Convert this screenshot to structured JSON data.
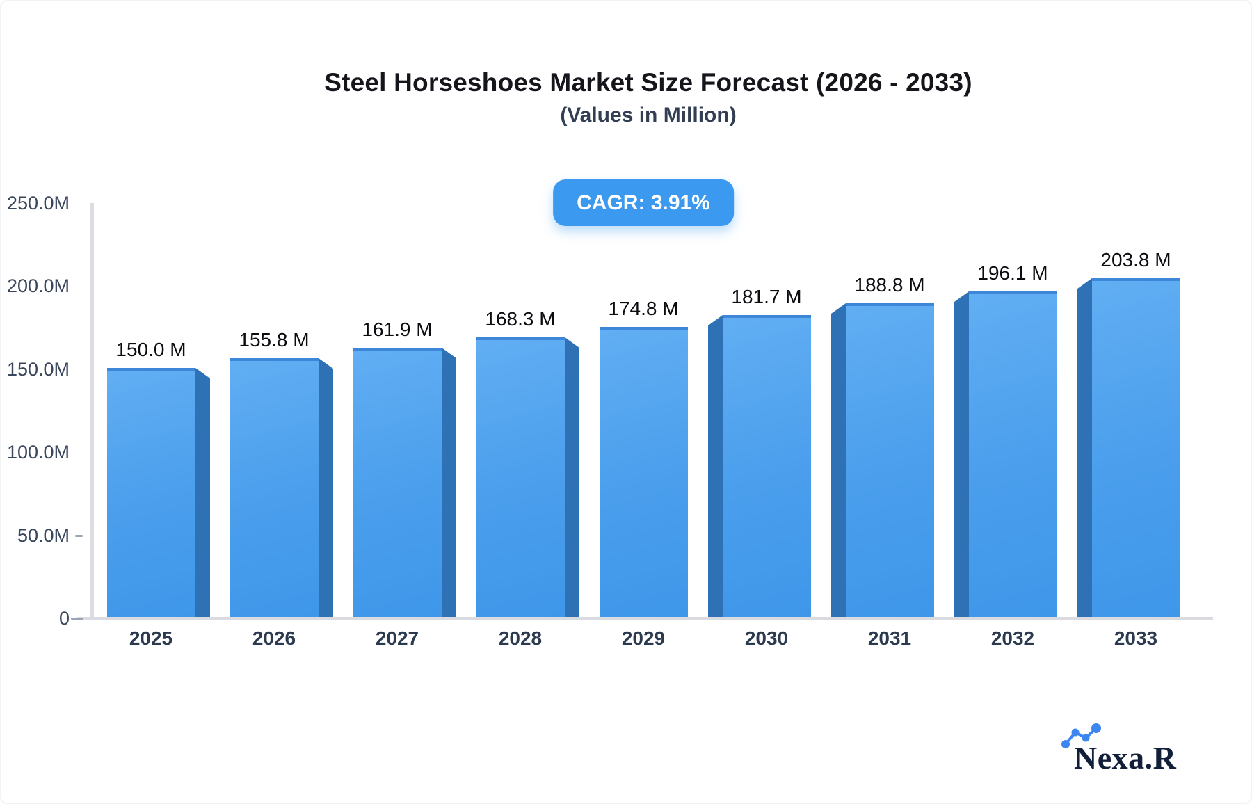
{
  "header": {
    "title": "Steel Horseshoes Market Size Forecast (2026 - 2033)",
    "subtitle": "(Values in Million)"
  },
  "badge": {
    "label": "CAGR: 3.91%",
    "color": "#3b9aef"
  },
  "chart_data": {
    "type": "bar",
    "title": "Steel Horseshoes Market Size Forecast (2026 - 2033)",
    "subtitle": "(Values in Million)",
    "categories": [
      "2025",
      "2026",
      "2027",
      "2028",
      "2029",
      "2030",
      "2031",
      "2032",
      "2033"
    ],
    "values": [
      150.0,
      155.8,
      161.9,
      168.3,
      174.8,
      181.7,
      188.8,
      196.1,
      203.8
    ],
    "value_labels": [
      "150.0 M",
      "155.8 M",
      "161.9 M",
      "168.3 M",
      "174.8 M",
      "181.7 M",
      "188.8 M",
      "196.1 M",
      "203.8 M"
    ],
    "xlabel": "",
    "ylabel": "",
    "ylim": [
      0,
      250
    ],
    "y_tick_labels": [
      "250.0M",
      "200.0M",
      "150.0M",
      "100.0M",
      "50.0M",
      "0"
    ],
    "y_tick_values": [
      250,
      200,
      150,
      100,
      50,
      0
    ],
    "grid": false,
    "legend_position": "none",
    "annotation": "CAGR: 3.91%",
    "bar_face_color": "#4da2ef",
    "bar_side_color": "#2e72b5",
    "bar_top_edge_color": "#3e86d8",
    "axis_color": "#dcdde3"
  },
  "logo": {
    "text": "Nexa.R",
    "icon": "line-chart-zigzag-icon",
    "icon_color": "#3b86f0",
    "text_color": "#121f38"
  }
}
